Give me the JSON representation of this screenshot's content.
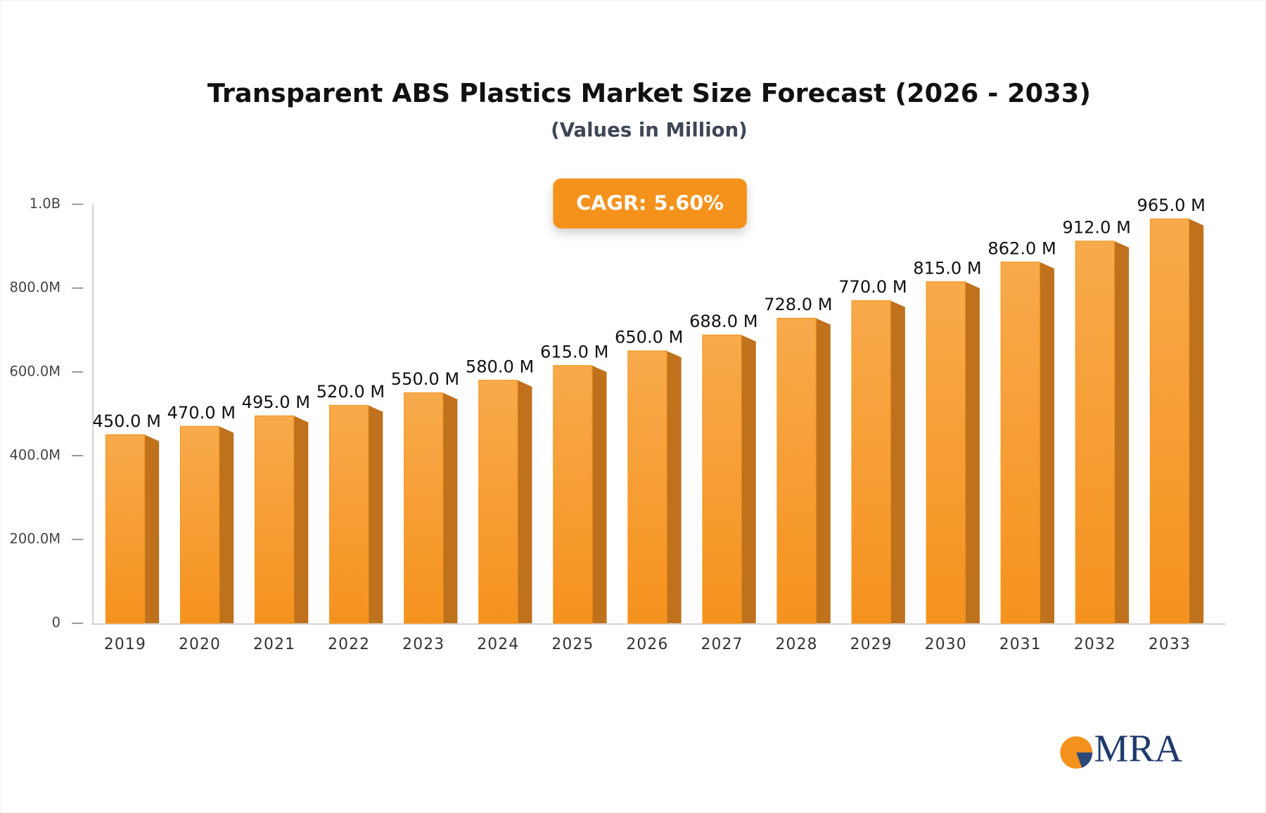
{
  "chart_data": {
    "type": "bar",
    "title": "Transparent ABS Plastics Market Size Forecast (2026 - 2033)",
    "subtitle": "(Values in Million)",
    "annotation": "CAGR: 5.60%",
    "logo_text": "MRA",
    "categories": [
      "2019",
      "2020",
      "2021",
      "2022",
      "2023",
      "2024",
      "2025",
      "2026",
      "2027",
      "2028",
      "2029",
      "2030",
      "2031",
      "2032",
      "2033"
    ],
    "values": [
      450,
      470,
      495,
      520,
      550,
      580,
      615,
      650,
      688,
      728,
      770,
      815,
      862,
      912,
      965
    ],
    "value_labels": [
      "450.0 M",
      "470.0 M",
      "495.0 M",
      "520.0 M",
      "550.0 M",
      "580.0 M",
      "615.0 M",
      "650.0 M",
      "688.0 M",
      "728.0 M",
      "770.0 M",
      "815.0 M",
      "862.0 M",
      "912.0 M",
      "965.0 M"
    ],
    "color": "#f5961f",
    "ylim": [
      0,
      1000
    ],
    "yticks": [
      0,
      {
        "value": 200,
        "label": "200.0M"
      },
      {
        "value": 400,
        "label": "400.0M"
      },
      {
        "value": 600,
        "label": "600.0M"
      },
      {
        "value": 800,
        "label": "800.0M"
      },
      {
        "value": 1000,
        "label": "1.0B"
      }
    ],
    "grid": false
  }
}
